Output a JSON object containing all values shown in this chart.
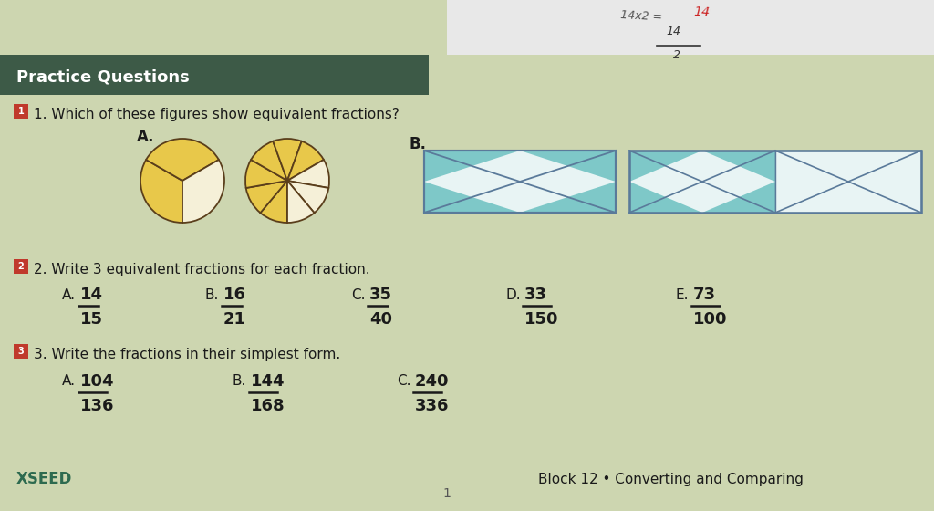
{
  "page_bg": "#cdd6b0",
  "header_bg": "#3d5a47",
  "header_text": "Practice Questions",
  "header_text_color": "#ffffff",
  "circle_fill_color": "#e8c84a",
  "circle_edge_color": "#5a3e1b",
  "circle_empty_color": "#f5f0d8",
  "rect_fill_color": "#7ec8c8",
  "rect_empty_color": "#e8f4f4",
  "rect_edge_color": "#5a7a9a",
  "bullet_color": "#c0392b",
  "text_color": "#1a1a1a",
  "q1_text": "1. Which of these figures show equivalent fractions?",
  "q2_text": "2. Write 3 equivalent fractions for each fraction.",
  "q3_text": "3. Write the fractions in their simplest form.",
  "label_A": "A.",
  "label_B": "B.",
  "q2_items": [
    {
      "label": "A.",
      "num": "14",
      "den": "15"
    },
    {
      "label": "B.",
      "num": "16",
      "den": "21"
    },
    {
      "label": "C.",
      "num": "35",
      "den": "40"
    },
    {
      "label": "D.",
      "num": "33",
      "den": "150"
    },
    {
      "label": "E.",
      "num": "73",
      "den": "100"
    }
  ],
  "q3_items": [
    {
      "label": "A.",
      "num": "104",
      "den": "136"
    },
    {
      "label": "B.",
      "num": "144",
      "den": "168"
    },
    {
      "label": "C.",
      "num": "240",
      "den": "336"
    }
  ],
  "xseed_text": "XSEED",
  "footer_text": "Block 12 • Converting and Comparing"
}
